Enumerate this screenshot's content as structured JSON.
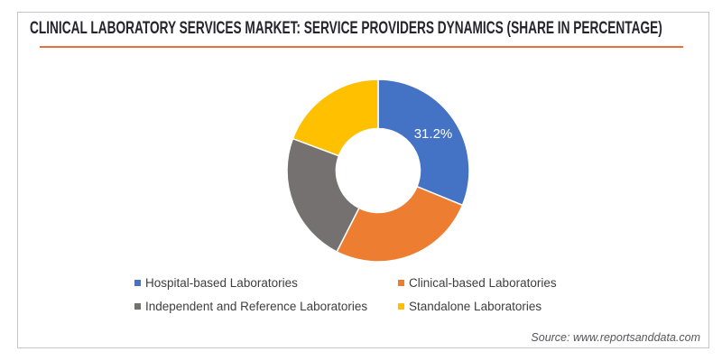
{
  "header": {
    "title": "CLINICAL LABORATORY SERVICES MARKET: SERVICE PROVIDERS DYNAMICS (SHARE IN PERCENTAGE)"
  },
  "footer": {
    "source": "Source: www.reportsanddata.com"
  },
  "colors": {
    "accent_rule": "#E8713A",
    "card_border": "#C6C6C6",
    "title_text": "#26252D",
    "legend_text": "#3E3E3E",
    "source_text": "#58565A",
    "slice_label_text": "#FFFFFF"
  },
  "chart_data": {
    "type": "pie",
    "subtype": "donut",
    "title": "Clinical Laboratory Services Market: Service Providers Dynamics (Share in Percentage)",
    "categories": [
      "Hospital-based Laboratories",
      "Clinical-based Laboratories",
      "Independent and Reference Laboratories",
      "Standalone Laboratories"
    ],
    "values": [
      31.2,
      26.3,
      23.2,
      19.3
    ],
    "colors": [
      "#4472C4",
      "#ED7D31",
      "#757171",
      "#FFC000"
    ],
    "data_labels": [
      "31.2%",
      "",
      "",
      ""
    ],
    "start_angle_deg": 0,
    "direction": "clockwise",
    "inner_radius_ratio": 0.46,
    "legend_position": "bottom",
    "grid": false
  },
  "legend": {
    "items": [
      {
        "label": "Hospital-based Laboratories",
        "color": "#4472C4"
      },
      {
        "label": "Clinical-based Laboratories",
        "color": "#ED7D31"
      },
      {
        "label": "Independent and Reference Laboratories",
        "color": "#757171"
      },
      {
        "label": "Standalone Laboratories",
        "color": "#FFC000"
      }
    ]
  }
}
